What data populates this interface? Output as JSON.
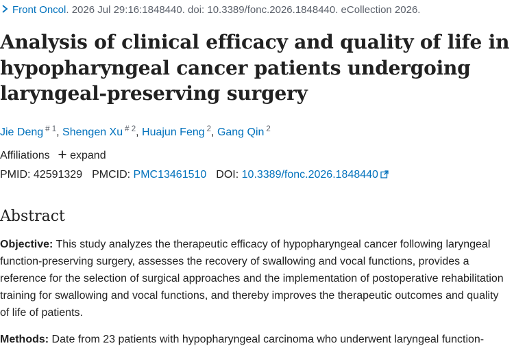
{
  "citation": {
    "journal": "Front Oncol",
    "details": ". 2026 Jul 29:16:1848440. doi: 10.3389/fonc.2026.1848440. eCollection 2026."
  },
  "title": "Analysis of clinical efficacy and quality of life in hypopharyngeal cancer patients undergoing laryngeal-preserving surgery",
  "authors": [
    {
      "name": "Jie Deng",
      "sup": "# 1"
    },
    {
      "name": "Shengen Xu",
      "sup": "# 2"
    },
    {
      "name": "Huajun Feng",
      "sup": "2"
    },
    {
      "name": "Gang Qin",
      "sup": "2"
    }
  ],
  "affiliations": {
    "label": "Affiliations",
    "expand_label": "expand"
  },
  "identifiers": {
    "pmid_label": "PMID:",
    "pmid": "42591329",
    "pmcid_label": "PMCID:",
    "pmcid": "PMC13461510",
    "doi_label": "DOI:",
    "doi": "10.3389/fonc.2026.1848440"
  },
  "abstract": {
    "heading": "Abstract",
    "objective_label": "Objective:",
    "objective_text": " This study analyzes the therapeutic efficacy of hypopharyngeal cancer following laryngeal function-preserving surgery, assesses the recovery of swallowing and vocal functions, provides a reference for the selection of surgical approaches and the implementation of postoperative rehabilitation training for swallowing and vocal functions, and thereby improves the therapeutic outcomes and quality of life of patients.",
    "methods_label": "Methods:",
    "methods_text": " Date from 23 patients with hypopharyngeal carcinoma who underwent laryngeal function-"
  },
  "icons": {
    "citation": "chevron-right-icon",
    "expand": "plus-icon",
    "doi": "external-link-icon"
  },
  "colors": {
    "link": "#0071bc",
    "text": "#212121",
    "muted": "#5b616b"
  }
}
